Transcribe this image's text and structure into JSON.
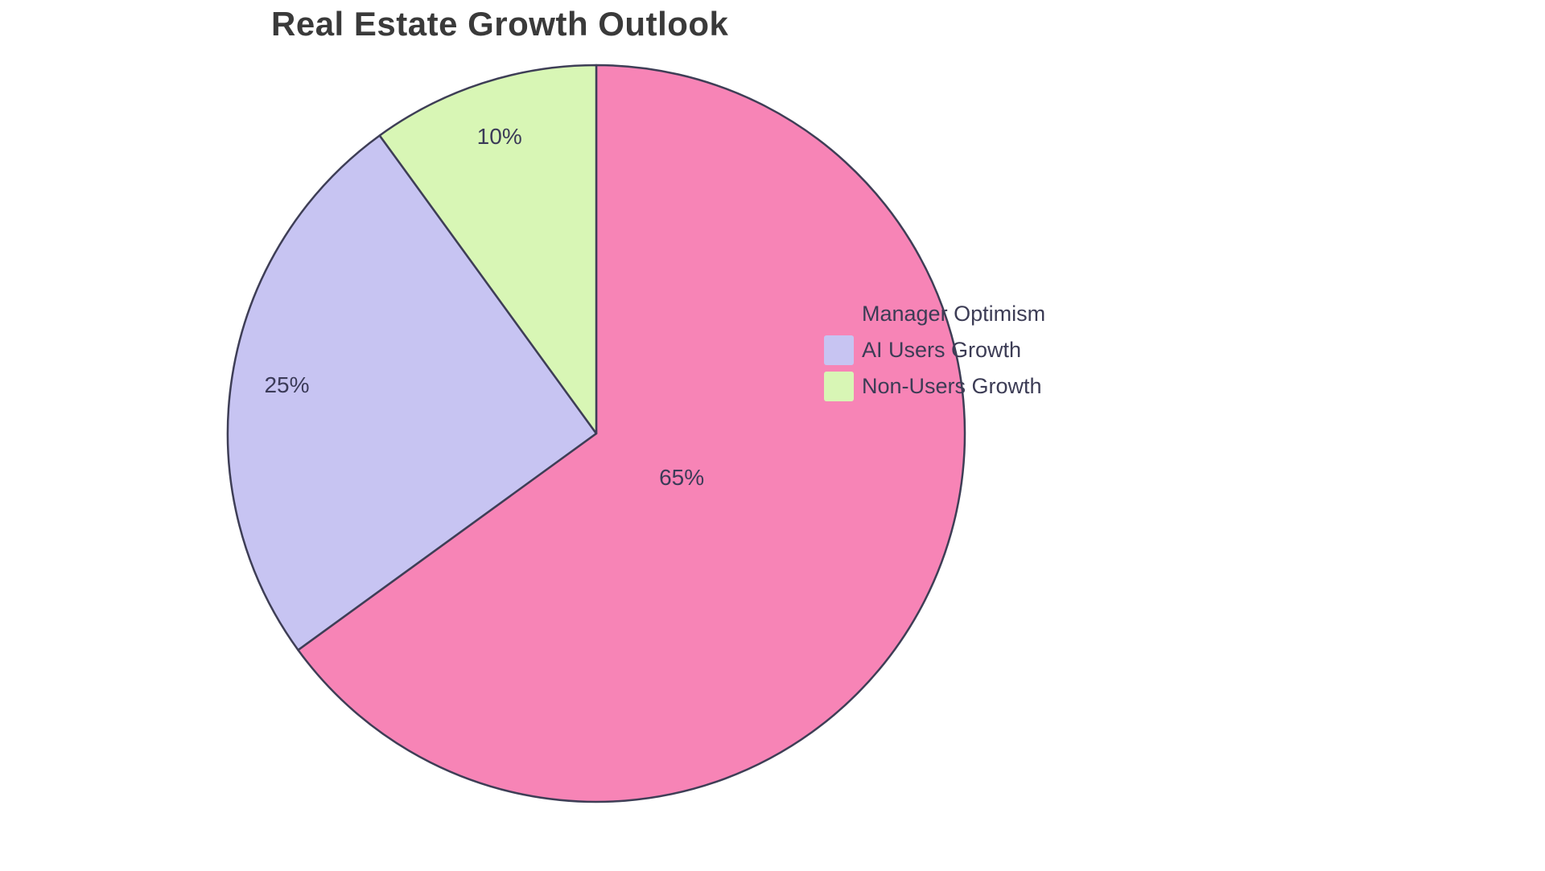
{
  "chart_data": {
    "type": "pie",
    "title": "Real Estate Growth Outlook",
    "slices": [
      {
        "label": "Manager Optimism",
        "value": 65,
        "percent_text": "65%",
        "color": "#f784b6"
      },
      {
        "label": "AI Users Growth",
        "value": 25,
        "percent_text": "25%",
        "color": "#c7c4f2"
      },
      {
        "label": "Non-Users Growth",
        "value": 10,
        "percent_text": "10%",
        "color": "#d8f6b5"
      }
    ],
    "stroke_color": "#3e3e56",
    "label_color": "#3b3b58",
    "start_angle_deg": 0,
    "direction": "clockwise",
    "legend_position": "right",
    "background": "#ffffff"
  }
}
